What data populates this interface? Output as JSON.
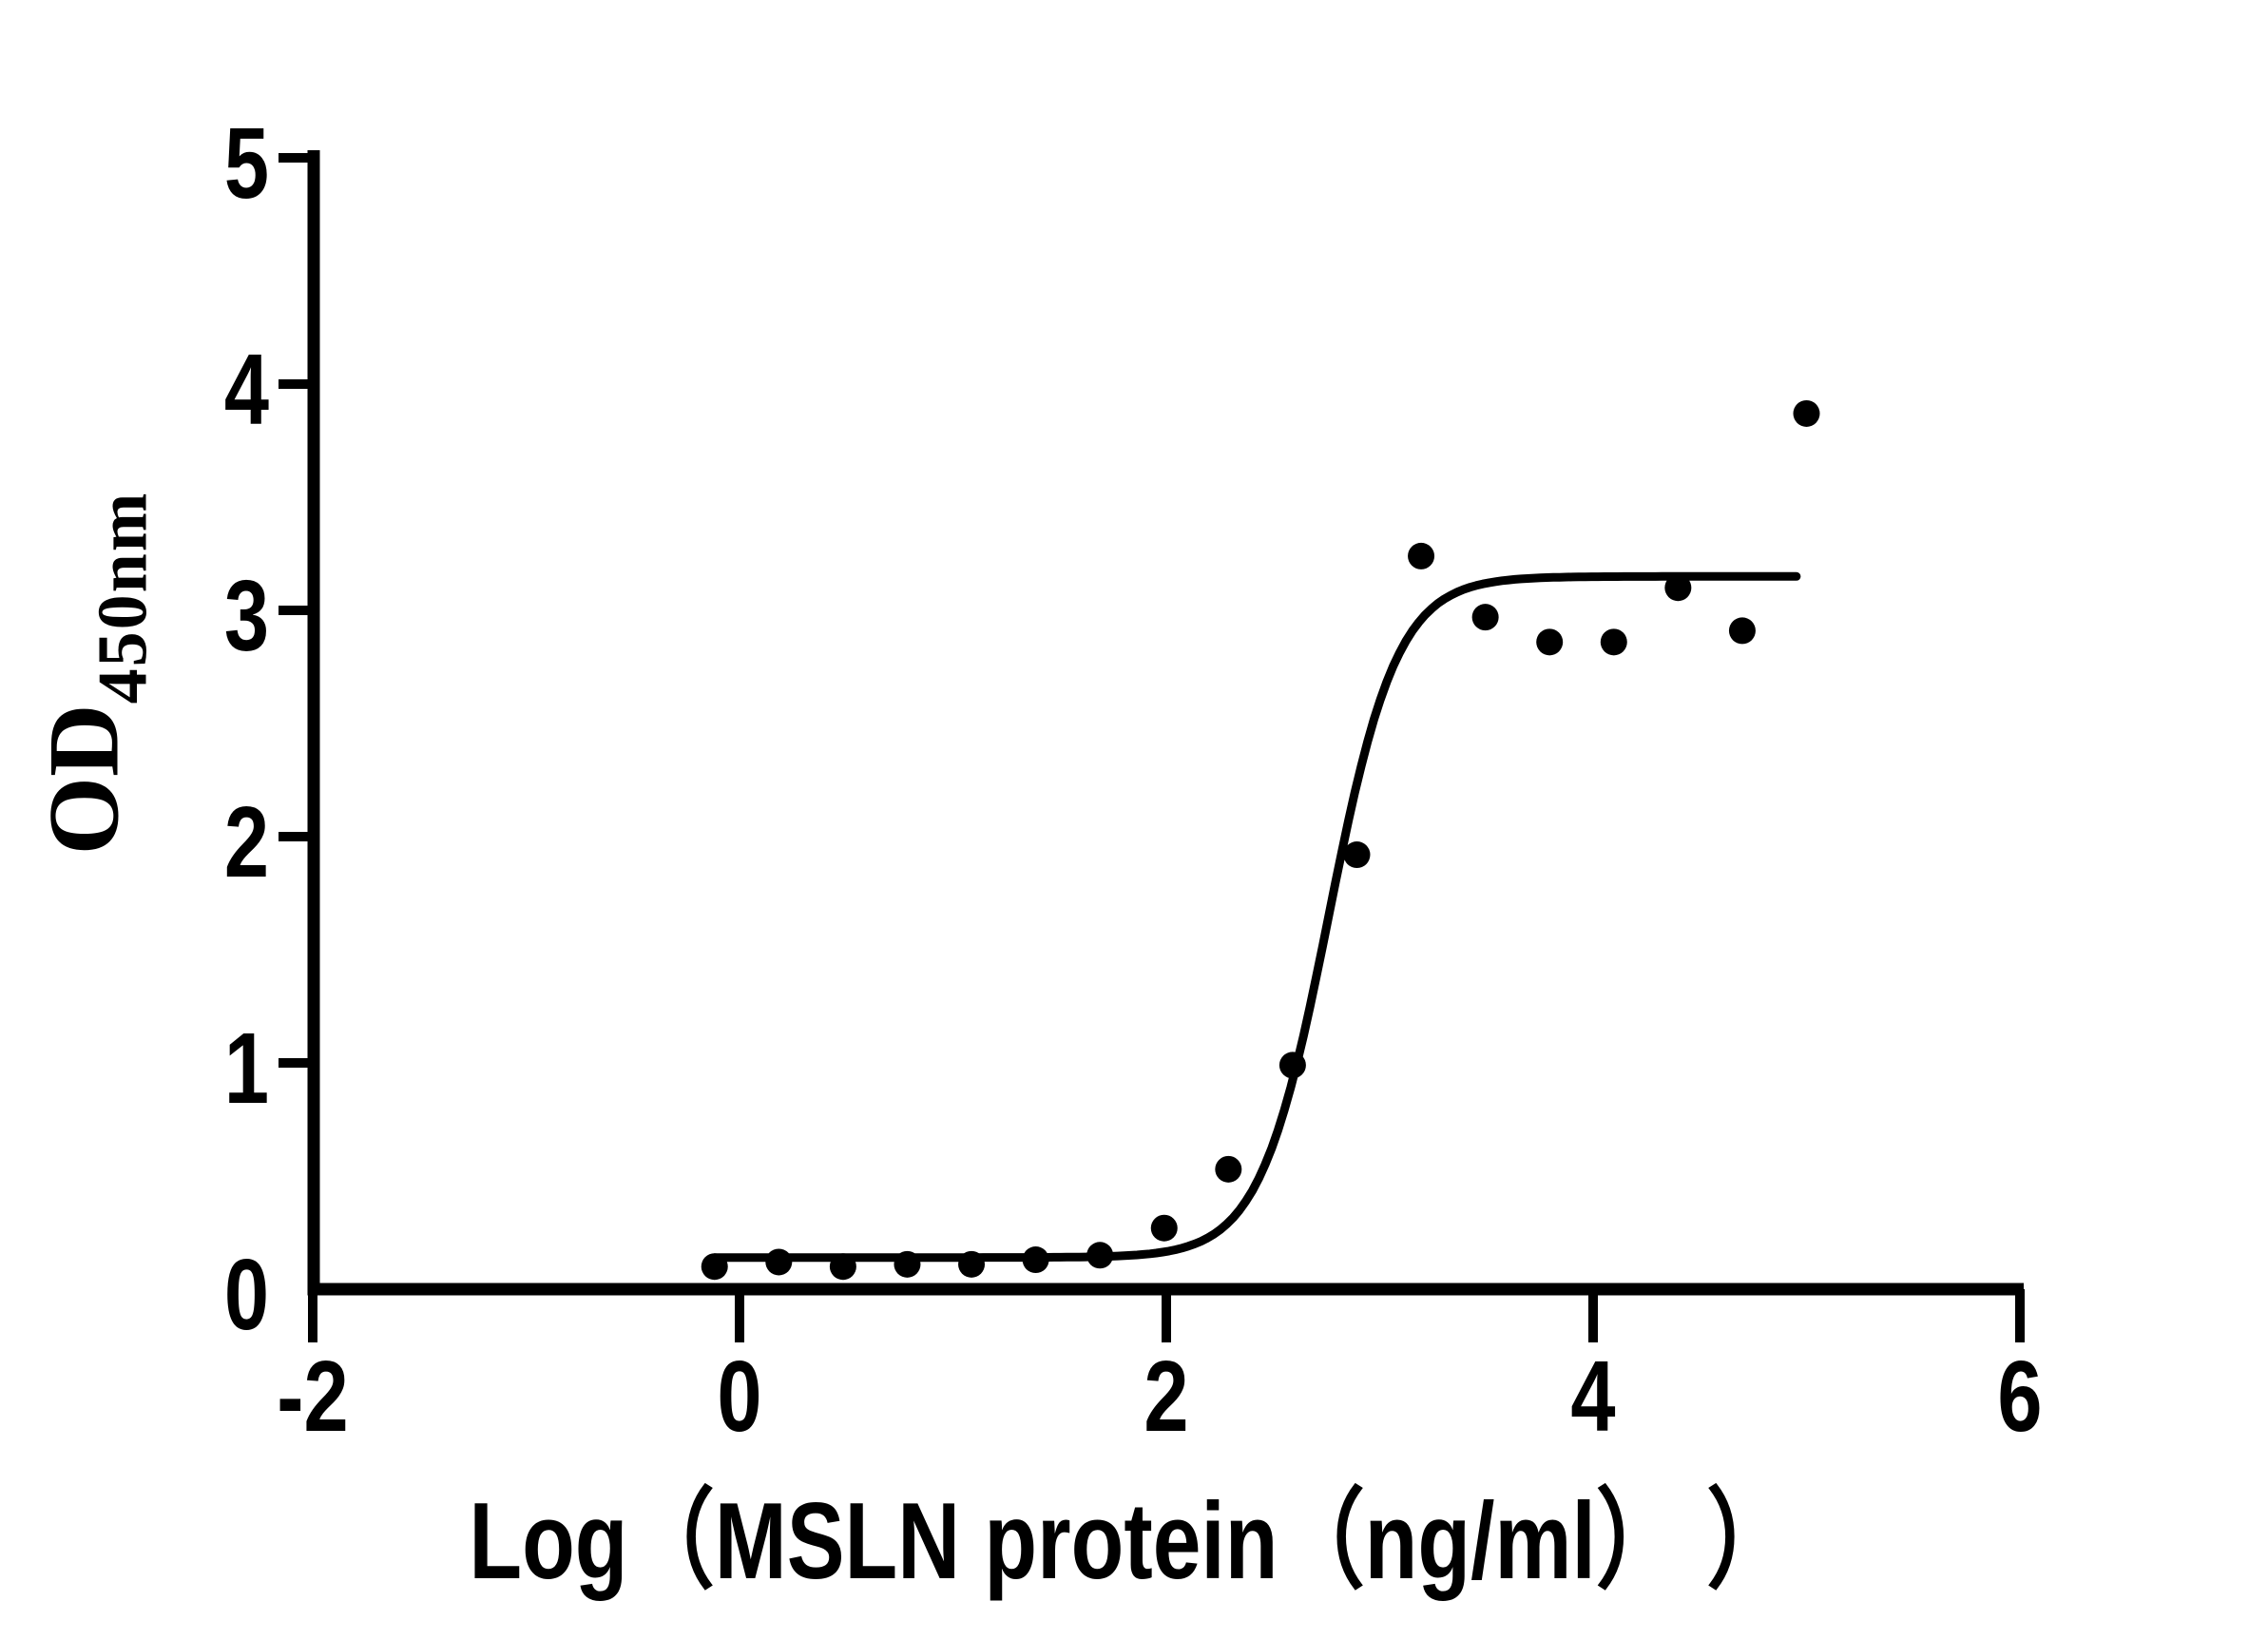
{
  "figure": {
    "background_color": "#ffffff",
    "ink_color": "#000000"
  },
  "chart_data": {
    "type": "scatter",
    "title": "",
    "xlabel": "Log（MSLN protein（ng/ml） ）",
    "ylabel_main": "OD",
    "ylabel_sub": "450nm",
    "xlim": [
      -2,
      6
    ],
    "ylim": [
      0,
      5
    ],
    "x_ticks": [
      -2,
      0,
      2,
      4,
      6
    ],
    "y_ticks": [
      0,
      1,
      2,
      3,
      4,
      5
    ],
    "grid": false,
    "legend_position": "none",
    "points": [
      [
        -0.117,
        0.1
      ],
      [
        0.184,
        0.12
      ],
      [
        0.485,
        0.1
      ],
      [
        0.786,
        0.11
      ],
      [
        1.087,
        0.11
      ],
      [
        1.388,
        0.13
      ],
      [
        1.689,
        0.15
      ],
      [
        1.99,
        0.27
      ],
      [
        2.291,
        0.53
      ],
      [
        2.592,
        0.99
      ],
      [
        2.893,
        1.92
      ],
      [
        3.194,
        3.24
      ],
      [
        3.495,
        2.97
      ],
      [
        3.796,
        2.86
      ],
      [
        4.097,
        2.86
      ],
      [
        4.398,
        3.1
      ],
      [
        4.699,
        2.91
      ],
      [
        5.0,
        3.87
      ]
    ],
    "fit_curve": {
      "model": "four-parameter-logistic",
      "bottom": 0.14,
      "top": 3.15,
      "log_ec50": 2.76,
      "hill_slope": 2.7,
      "x_start": -0.117,
      "x_end": 4.98
    }
  }
}
